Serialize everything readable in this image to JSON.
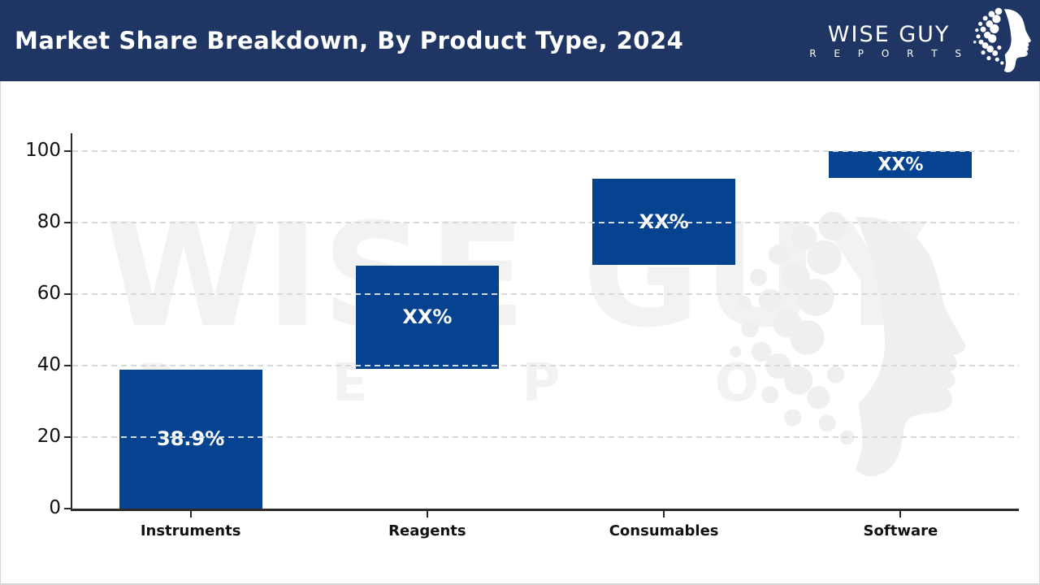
{
  "header": {
    "title": "Market Share Breakdown, By Product Type, 2024",
    "logo": {
      "line1": "WISE GUY",
      "line2": "R E P O R T S",
      "face_icon": "dotted-head-profile"
    }
  },
  "watermark": {
    "line1": "WISE GUY",
    "line2": "R E P O R T S",
    "face_icon": "dotted-head-profile"
  },
  "colors": {
    "header_bg": "#1f3564",
    "bar_blue": "#05428f",
    "grid": "#d9d9d9",
    "axis": "#2b2b2b",
    "watermark": "#f2f2f2",
    "value_label": "#ffffff"
  },
  "chart_data": {
    "type": "bar",
    "subtype": "stacked-waterfall-breakdown",
    "title": "Market Share Breakdown, By Product Type, 2024",
    "categories": [
      "Instruments",
      "Reagents",
      "Consumables",
      "Software"
    ],
    "segments": [
      {
        "category": "Instruments",
        "start": 0,
        "end": 38.9,
        "label": "38.9%"
      },
      {
        "category": "Reagents",
        "start": 39.1,
        "end": 68.0,
        "label": "XX%"
      },
      {
        "category": "Consumables",
        "start": 68.2,
        "end": 92.3,
        "label": "XX%"
      },
      {
        "category": "Software",
        "start": 92.5,
        "end": 100.0,
        "label": "XX%"
      }
    ],
    "xlabel": "",
    "ylabel": "",
    "ylim": [
      0,
      100
    ],
    "y_ticks": [
      0,
      20,
      40,
      60,
      80,
      100
    ],
    "grid": "horizontal dashed, drawn above bars",
    "legend": "none",
    "bar_color": "#05428f",
    "value_label_color": "#ffffff"
  }
}
